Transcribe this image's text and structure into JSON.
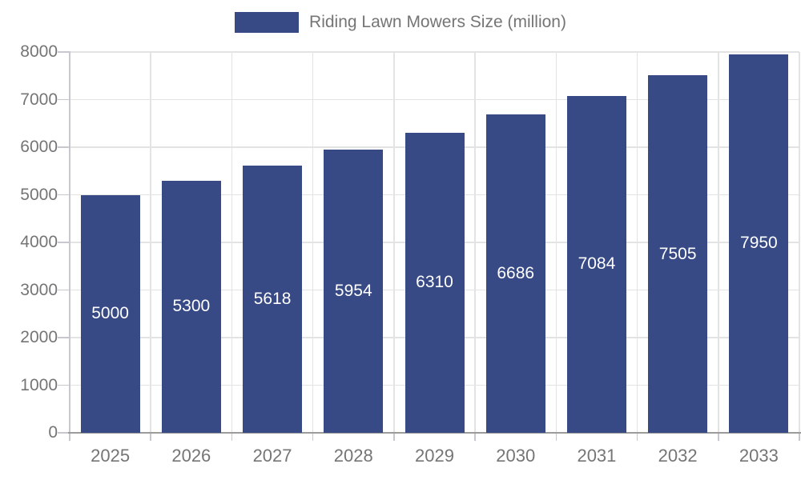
{
  "chart_data": {
    "type": "bar",
    "title": "",
    "categories": [
      "2025",
      "2026",
      "2027",
      "2028",
      "2029",
      "2030",
      "2031",
      "2032",
      "2033"
    ],
    "series": [
      {
        "name": "Riding Lawn Mowers Size (million)",
        "values": [
          5000,
          5300,
          5618,
          5954,
          6310,
          6686,
          7084,
          7505,
          7950
        ],
        "color": "#374a85"
      }
    ],
    "xlabel": "",
    "ylabel": "",
    "ylim": [
      0,
      8000
    ],
    "yticks": [
      0,
      1000,
      2000,
      3000,
      4000,
      5000,
      6000,
      7000,
      8000
    ],
    "grid": true,
    "legend_position": "top-center",
    "data_labels": "inside-center",
    "data_label_color": "#ffffff"
  },
  "colors": {
    "bar": "#374a85",
    "grid": "#e3e3e3",
    "axis_text": "#757575",
    "baseline": "#9b9b9b",
    "axis_line": "#c7c7d0",
    "background": "#ffffff"
  }
}
